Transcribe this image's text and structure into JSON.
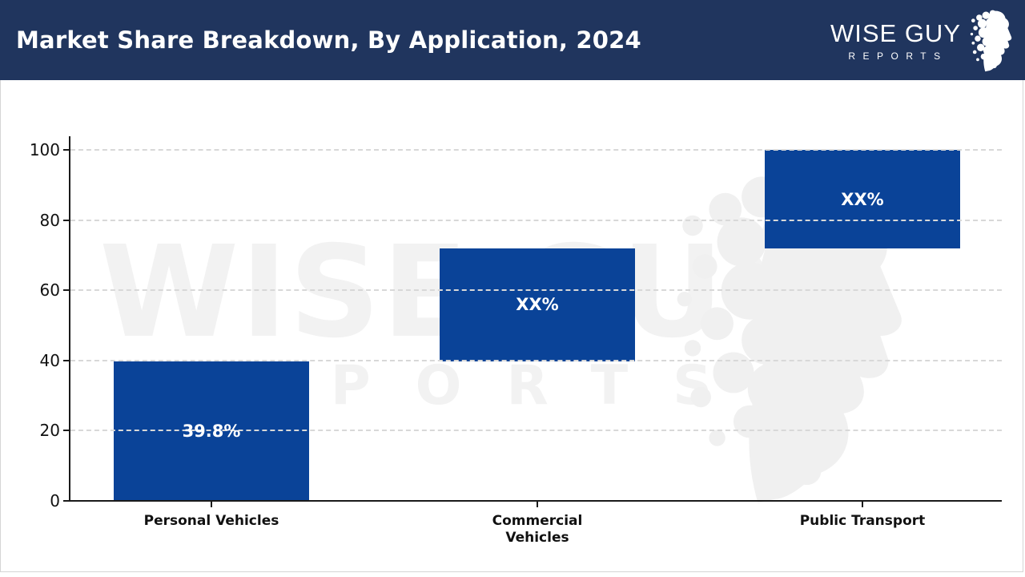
{
  "header": {
    "title": "Market Share Breakdown, By Application, 2024",
    "bg_color": "#20355e",
    "logo": {
      "line1": "WISE GUY",
      "line2": "REPORTS"
    }
  },
  "watermark": {
    "line1": "WISE GUY",
    "line2": "REPORTS"
  },
  "chart_data": {
    "type": "bar",
    "variant": "stepped-waterfall",
    "title": "Market Share Breakdown, By Application, 2024",
    "categories": [
      "Personal Vehicles",
      "Commercial\nVehicles",
      "Public Transport"
    ],
    "segments": [
      {
        "category": "Personal Vehicles",
        "start": 0,
        "end": 39.8,
        "label": "39.8%"
      },
      {
        "category": "Commercial Vehicles",
        "start": 39.8,
        "end": 71.9,
        "label": "XX%"
      },
      {
        "category": "Public Transport",
        "start": 71.9,
        "end": 100,
        "label": "XX%"
      }
    ],
    "bar_labels": [
      "39.8%",
      "XX%",
      "XX%"
    ],
    "yticks": [
      0,
      20,
      40,
      60,
      80,
      100
    ],
    "ylim": [
      0,
      100
    ],
    "grid": true,
    "legend": false,
    "bar_color": "#0a4398",
    "value_label_color": "#ffffff",
    "axis_color": "#1a1a1a",
    "gridline_color": "#d8d8d8"
  }
}
